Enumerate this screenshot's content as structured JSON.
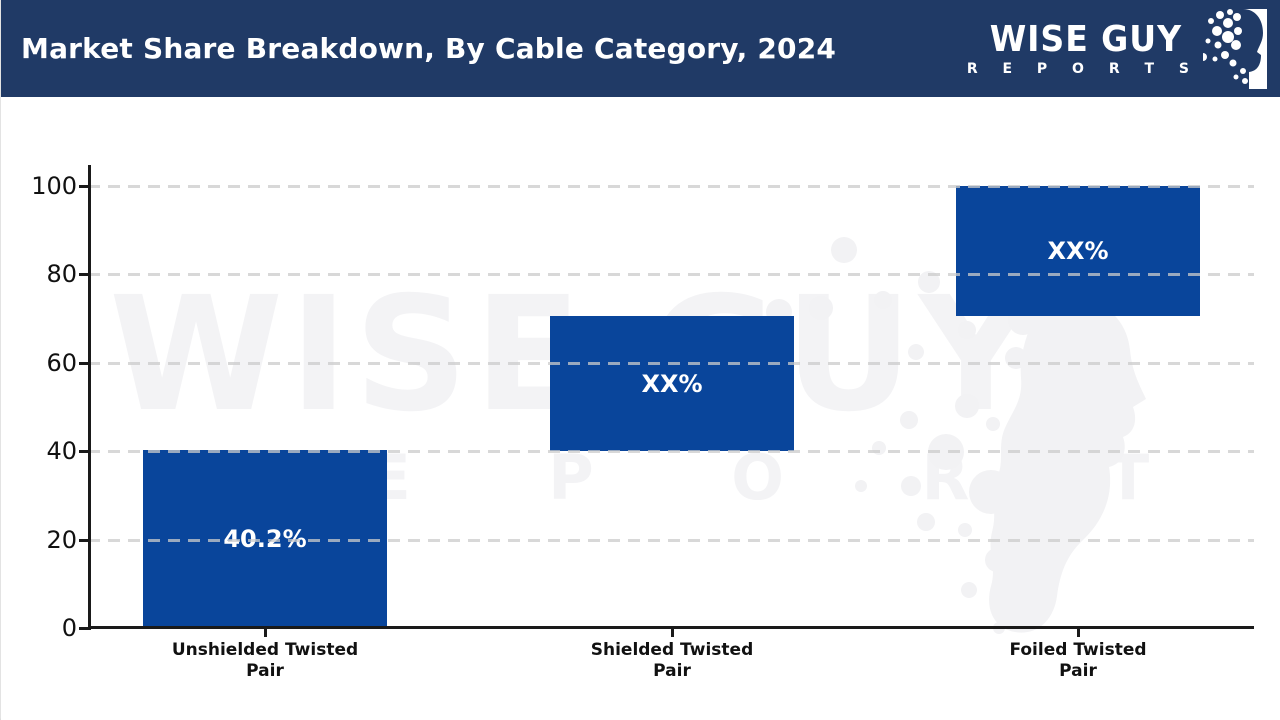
{
  "header": {
    "title": "Market Share Breakdown, By Cable Category, 2024",
    "bg_color": "#203A66",
    "logo": {
      "line1": "WISE GUY",
      "line2": "R E P O R T S"
    }
  },
  "watermark": {
    "line1": "WISE GUY",
    "line2": "R E P O R T S"
  },
  "chart_data": {
    "type": "bar",
    "variant": "stacked-breakdown-waterfall",
    "title": "Market Share Breakdown, By Cable Category, 2024",
    "categories": [
      "Unshielded Twisted Pair",
      "Shielded Twisted Pair",
      "Foiled Twisted Pair"
    ],
    "category_lines": [
      [
        "Unshielded Twisted",
        "Pair"
      ],
      [
        "Shielded Twisted",
        "Pair"
      ],
      [
        "Foiled Twisted",
        "Pair"
      ]
    ],
    "bars": [
      {
        "category": "Unshielded Twisted Pair",
        "start": 0,
        "end": 40.2,
        "label": "40.2%",
        "value_pct": 40.2
      },
      {
        "category": "Shielded Twisted Pair",
        "start": 40.2,
        "end": 70.7,
        "label": "XX%",
        "value_pct_est": 30.5
      },
      {
        "category": "Foiled Twisted Pair",
        "start": 70.7,
        "end": 100,
        "label": "XX%",
        "value_pct_est": 29.3
      }
    ],
    "ylim": [
      0,
      100
    ],
    "yticks": [
      0,
      20,
      40,
      60,
      80,
      100
    ],
    "grid": {
      "horizontal": true,
      "style": "dashed"
    },
    "legend": false,
    "bar_color": "#09459B",
    "bar_label_color": "#FFFFFF",
    "axis_color": "#1a1a1a"
  },
  "colors": {
    "header_bg": "#203A66",
    "watermark": "#F3F3F5",
    "grid": "#CBCBCB"
  }
}
